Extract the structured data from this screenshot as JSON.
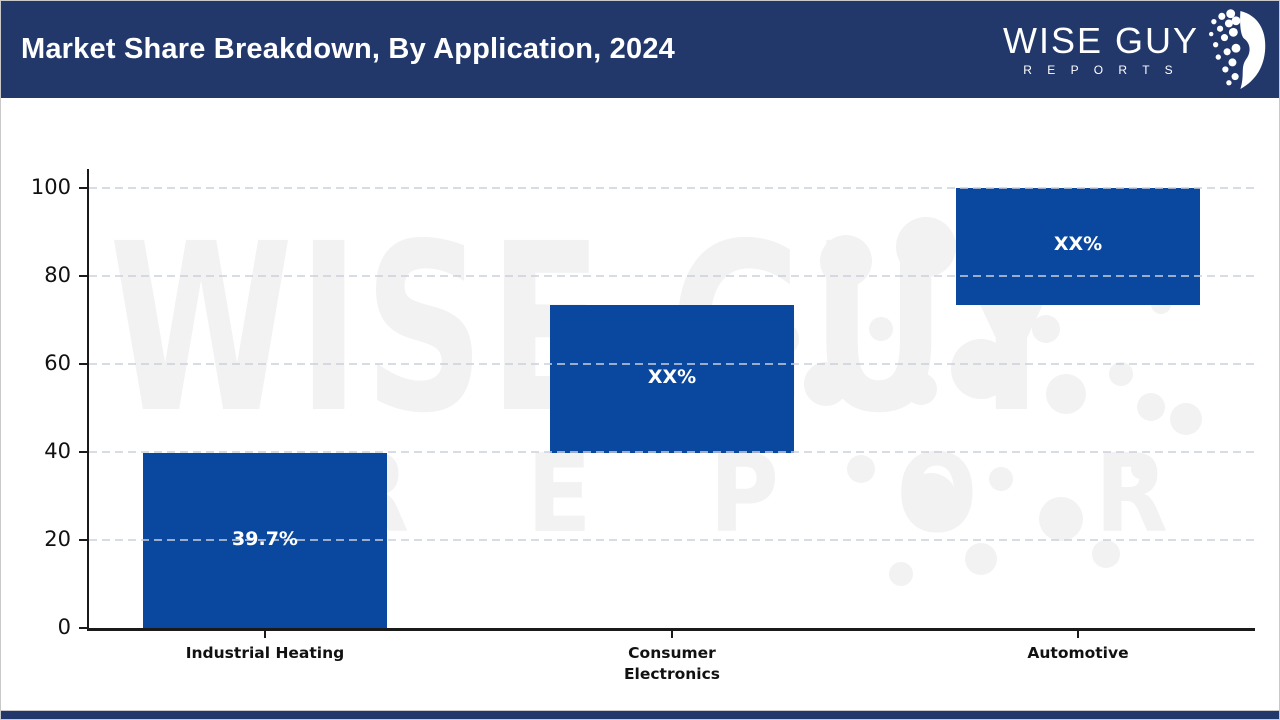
{
  "header": {
    "title": "Market Share Breakdown, By Application, 2024",
    "bg_color": "#22386b",
    "logo": {
      "name": "WISE GUY",
      "sub": "R E P O R T S"
    }
  },
  "watermark": {
    "big": "WISE GUY",
    "sub": "R E P O R T S",
    "color": "#f2f2f2"
  },
  "chart_data": {
    "type": "bar",
    "subtype": "waterfall",
    "title": "Market Share Breakdown, By Application, 2024",
    "categories": [
      "Industrial Heating",
      "Consumer\nElectronics",
      "Automotive"
    ],
    "segments": [
      {
        "category": "Industrial Heating",
        "start": 0,
        "end": 39.7,
        "label": "39.7%"
      },
      {
        "category": "Consumer Electronics",
        "start": 39.7,
        "end": 73.5,
        "label": "XX%"
      },
      {
        "category": "Automotive",
        "start": 73.5,
        "end": 100,
        "label": "XX%"
      }
    ],
    "ylim": [
      0,
      100
    ],
    "yticks": [
      0,
      20,
      40,
      60,
      80,
      100
    ],
    "grid": "horizontal-dashed",
    "legend": "none",
    "bar_color": "#0a479f",
    "bar_label_color": "#ffffff",
    "grid_color": "rgba(203,208,218,0.75)",
    "axis_color": "#1a1a1a"
  }
}
